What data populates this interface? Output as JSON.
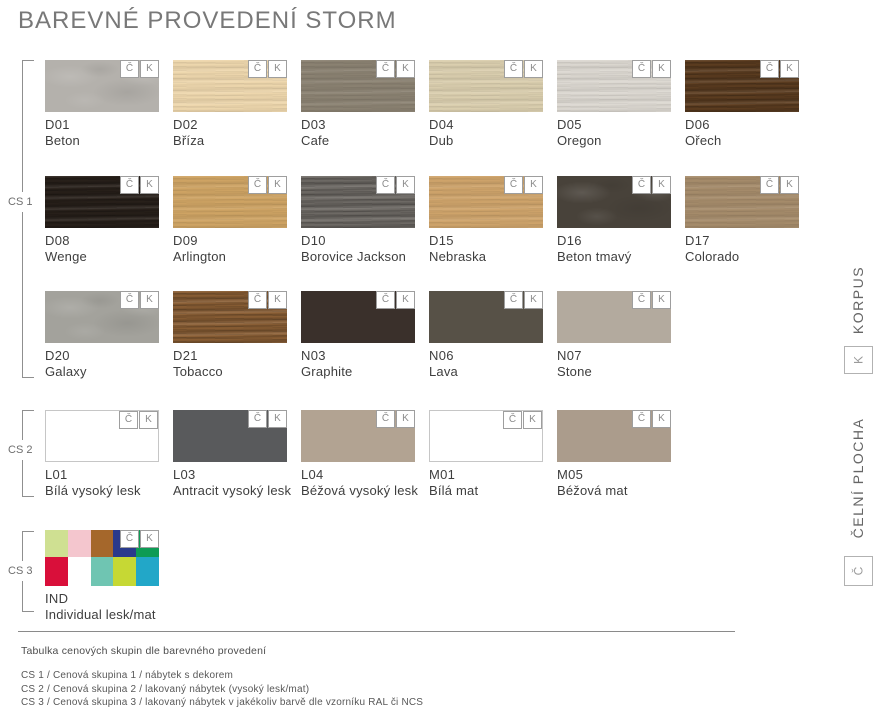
{
  "page": {
    "title": "BAREVNÉ PROVEDENÍ STORM"
  },
  "badges": {
    "front": "Č",
    "korpus": "K"
  },
  "groups": [
    {
      "label": "CS 1"
    },
    {
      "label": "CS 2"
    },
    {
      "label": "CS 3"
    }
  ],
  "legend_right": {
    "korpus_label": "KORPUS",
    "korpus_badge": "K",
    "front_label": "ČELNÍ PLOCHA",
    "front_badge": "Č"
  },
  "swatch_rows": [
    {
      "group": "CS 1",
      "items": [
        {
          "code": "D01",
          "name": "Beton",
          "color": "#b4b1ac",
          "texture": "concrete"
        },
        {
          "code": "D02",
          "name": "Bříza",
          "color": "#eed7ad",
          "texture": "wood"
        },
        {
          "code": "D03",
          "name": "Cafe",
          "color": "#8b8272",
          "texture": "wood"
        },
        {
          "code": "D04",
          "name": "Dub",
          "color": "#dbcfaf",
          "texture": "wood"
        },
        {
          "code": "D05",
          "name": "Oregon",
          "color": "#dcd8d1",
          "texture": "wood"
        },
        {
          "code": "D06",
          "name": "Ořech",
          "color": "#5d3d20",
          "texture": "wood-dark"
        }
      ]
    },
    {
      "group": "CS 1",
      "items": [
        {
          "code": "D08",
          "name": "Wenge",
          "color": "#28201a",
          "texture": "wood-dark"
        },
        {
          "code": "D09",
          "name": "Arlington",
          "color": "#cfa464",
          "texture": "wood"
        },
        {
          "code": "D10",
          "name": "Borovice Jackson",
          "color": "#6f6b66",
          "texture": "wood-dark"
        },
        {
          "code": "D15",
          "name": "Nebraska",
          "color": "#cfa46b",
          "texture": "wood"
        },
        {
          "code": "D16",
          "name": "Beton tmavý",
          "color": "#48423a",
          "texture": "concrete"
        },
        {
          "code": "D17",
          "name": "Colorado",
          "color": "#a68c6b",
          "texture": "wood"
        }
      ]
    },
    {
      "group": "CS 1",
      "items": [
        {
          "code": "D20",
          "name": "Galaxy",
          "color": "#a3a29c",
          "texture": "concrete"
        },
        {
          "code": "D21",
          "name": "Tobacco",
          "color": "#8a5e34",
          "texture": "wood-dark"
        },
        {
          "code": "N03",
          "name": "Graphite",
          "color": "#3a302b",
          "texture": "flat"
        },
        {
          "code": "N06",
          "name": "Lava",
          "color": "#575147",
          "texture": "flat"
        },
        {
          "code": "N07",
          "name": "Stone",
          "color": "#b3aa9e",
          "texture": "flat"
        }
      ]
    },
    {
      "group": "CS 2",
      "items": [
        {
          "code": "L01",
          "name": "Bílá vysoký lesk",
          "color": "#ffffff",
          "texture": "white"
        },
        {
          "code": "L03",
          "name": "Antracit vysoký lesk",
          "color": "#595a5c",
          "texture": "flat"
        },
        {
          "code": "L04",
          "name": "Béžová vysoký lesk",
          "color": "#b2a392",
          "texture": "flat"
        },
        {
          "code": "M01",
          "name": "Bílá mat",
          "color": "#ffffff",
          "texture": "white"
        },
        {
          "code": "M05",
          "name": "Béžová mat",
          "color": "#ab9c8c",
          "texture": "flat"
        }
      ]
    },
    {
      "group": "CS 3",
      "items": [
        {
          "code": "IND",
          "name": "Individual lesk/mat",
          "texture": "multi",
          "colors": [
            "#cfe092",
            "#f4c6ce",
            "#a5672b",
            "#2a3a8c",
            "#0d9b55",
            "#d90f3a",
            "#ffffff",
            "#6fc5b2",
            "#c6d834",
            "#22a7c8"
          ]
        }
      ]
    }
  ],
  "footer": {
    "heading": "Tabulka cenových skupin dle barevného provedení",
    "lines": [
      "CS 1 / Cenová skupina 1 / nábytek s dekorem",
      "CS 2 / Cenová skupina 2 / lakovaný nábytek (vysoký lesk/mat)",
      "CS 3 / Cenová skupina 3 / lakovaný nábytek v jakékoliv barvě dle vzorníku RAL či NCS"
    ]
  }
}
